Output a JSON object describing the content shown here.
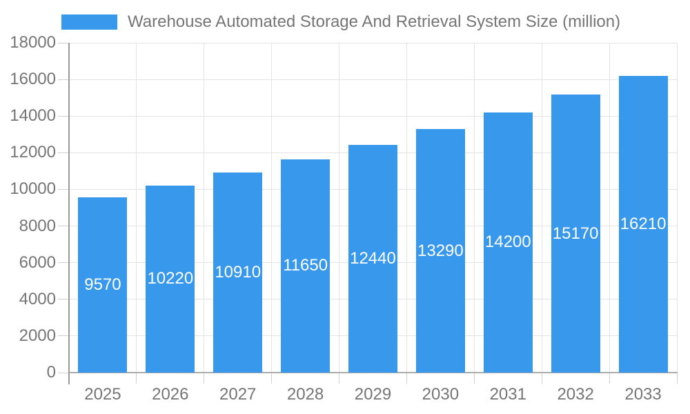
{
  "legend": {
    "label": "Warehouse Automated Storage And Retrieval System Size (million)"
  },
  "chart_data": {
    "type": "bar",
    "title": "Warehouse Automated Storage And Retrieval System Size (million)",
    "series_name": "Warehouse Automated Storage And Retrieval System Size (million)",
    "categories": [
      "2025",
      "2026",
      "2027",
      "2028",
      "2029",
      "2030",
      "2031",
      "2032",
      "2033"
    ],
    "values": [
      9570,
      10220,
      10910,
      11650,
      12440,
      13290,
      14200,
      15170,
      16210
    ],
    "xlabel": "",
    "ylabel": "",
    "ylim": [
      0,
      18000
    ],
    "ytick_interval": 2000,
    "ytick_labels": [
      "0",
      "2000",
      "4000",
      "6000",
      "8000",
      "10000",
      "12000",
      "14000",
      "16000",
      "18000"
    ],
    "grid": true,
    "legend_position": "top",
    "value_labels_shown": true,
    "colors": {
      "bar": "#3898EC",
      "value_label": "#FFFFFF",
      "axis_label": "#757575",
      "legend_text": "#757575",
      "gridline": "#E3E3E3",
      "tick": "#CFCFCF",
      "y_axis_line": "#999999",
      "x_axis_line": "#ABABAB",
      "background": "#FFFFFF"
    }
  }
}
